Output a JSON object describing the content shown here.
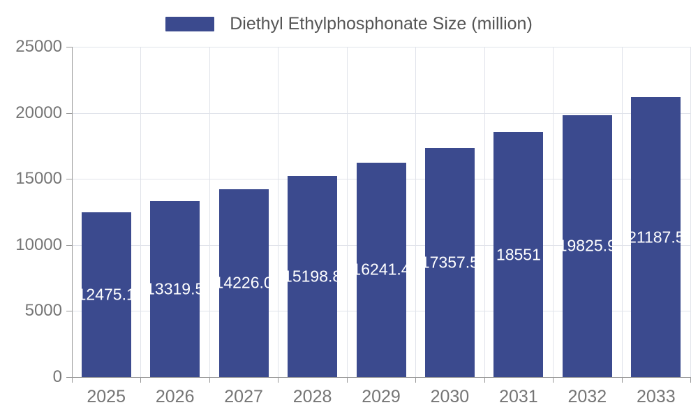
{
  "chart_data": {
    "type": "bar",
    "legend": "Diethyl Ethylphosphonate Size (million)",
    "categories": [
      "2025",
      "2026",
      "2027",
      "2028",
      "2029",
      "2030",
      "2031",
      "2032",
      "2033"
    ],
    "values": [
      12475.1,
      13319.5,
      14226.0,
      15198.8,
      16241.4,
      17357.5,
      18551,
      19825.9,
      21187.5
    ],
    "labels": [
      "12475.1",
      "13319.5",
      "14226.0",
      "15198.8",
      "16241.4",
      "17357.5",
      "18551",
      "19825.9",
      "21187.5"
    ],
    "title": "",
    "xlabel": "",
    "ylabel": "",
    "ylim": [
      0,
      25000
    ],
    "yticks": [
      0,
      5000,
      10000,
      15000,
      20000,
      25000
    ],
    "legend_position": "top",
    "grid": true,
    "colors": {
      "bar": "#3b4a8e",
      "value_label": "#ffffff",
      "axis_text": "#757575",
      "legend_text": "#555555",
      "grid_line": "#e0e3ea",
      "axis_line": "#999999",
      "background": "#ffffff"
    }
  }
}
